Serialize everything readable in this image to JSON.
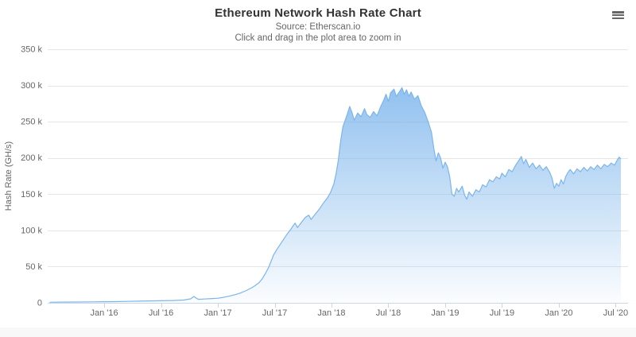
{
  "page": {
    "background_strip_color": "#f8f8f9"
  },
  "header": {
    "menu_icon": "hamburger-icon"
  },
  "chart_data": {
    "type": "area",
    "title": "Ethereum Network Hash Rate Chart",
    "subtitle": [
      "Source: Etherscan.io",
      "Click and drag in the plot area to zoom in"
    ],
    "xlabel": "",
    "ylabel": "Hash Rate (GH/s)",
    "y_unit": "k GH/s",
    "ylim": [
      0,
      350
    ],
    "xlim": [
      2015.503,
      2020.609
    ],
    "grid": true,
    "legend": "none",
    "colors": {
      "series_line": "#7cb5ec",
      "area_fill_top": "rgba(124,181,236,0.85)",
      "area_fill_bottom": "rgba(124,181,236,0.03)",
      "gridline": "#e6e6e6",
      "axis_line": "#ccd6eb",
      "tick_label": "#666666",
      "title": "#333333",
      "subtitle": "#666666"
    },
    "yticks": [
      {
        "v": 0,
        "label": "0"
      },
      {
        "v": 50,
        "label": "50 k"
      },
      {
        "v": 100,
        "label": "100 k"
      },
      {
        "v": 150,
        "label": "150 k"
      },
      {
        "v": 200,
        "label": "200 k"
      },
      {
        "v": 250,
        "label": "250 k"
      },
      {
        "v": 300,
        "label": "300 k"
      },
      {
        "v": 350,
        "label": "350 k"
      }
    ],
    "xticks": [
      {
        "t": 2016.0,
        "label": "Jan '16"
      },
      {
        "t": 2016.5,
        "label": "Jul '16"
      },
      {
        "t": 2017.0,
        "label": "Jan '17"
      },
      {
        "t": 2017.5,
        "label": "Jul '17"
      },
      {
        "t": 2018.0,
        "label": "Jan '18"
      },
      {
        "t": 2018.5,
        "label": "Jul '18"
      },
      {
        "t": 2019.0,
        "label": "Jan '19"
      },
      {
        "t": 2019.5,
        "label": "Jul '19"
      },
      {
        "t": 2020.0,
        "label": "Jan '20"
      },
      {
        "t": 2020.5,
        "label": "Jul '20"
      }
    ],
    "series": [
      {
        "name": "Hash Rate",
        "points": [
          [
            2015.52,
            0.8
          ],
          [
            2015.62,
            1.0
          ],
          [
            2015.75,
            1.1
          ],
          [
            2015.9,
            1.3
          ],
          [
            2016.0,
            1.5
          ],
          [
            2016.1,
            1.7
          ],
          [
            2016.2,
            2.0
          ],
          [
            2016.3,
            2.3
          ],
          [
            2016.4,
            2.6
          ],
          [
            2016.5,
            2.8
          ],
          [
            2016.6,
            3.2
          ],
          [
            2016.7,
            3.8
          ],
          [
            2016.76,
            5.5
          ],
          [
            2016.79,
            8.8
          ],
          [
            2016.81,
            6.2
          ],
          [
            2016.83,
            4.8
          ],
          [
            2016.88,
            5.3
          ],
          [
            2016.95,
            5.9
          ],
          [
            2017.0,
            6.4
          ],
          [
            2017.05,
            7.6
          ],
          [
            2017.1,
            9.2
          ],
          [
            2017.15,
            11.2
          ],
          [
            2017.2,
            13.6
          ],
          [
            2017.25,
            17
          ],
          [
            2017.3,
            21
          ],
          [
            2017.33,
            24
          ],
          [
            2017.36,
            27.5
          ],
          [
            2017.39,
            33
          ],
          [
            2017.42,
            41
          ],
          [
            2017.45,
            50
          ],
          [
            2017.47,
            58
          ],
          [
            2017.49,
            66
          ],
          [
            2017.52,
            74
          ],
          [
            2017.55,
            81
          ],
          [
            2017.58,
            88
          ],
          [
            2017.61,
            95
          ],
          [
            2017.64,
            101
          ],
          [
            2017.66,
            106
          ],
          [
            2017.68,
            110
          ],
          [
            2017.7,
            104
          ],
          [
            2017.72,
            108
          ],
          [
            2017.74,
            112
          ],
          [
            2017.77,
            118
          ],
          [
            2017.8,
            121
          ],
          [
            2017.82,
            115
          ],
          [
            2017.84,
            119
          ],
          [
            2017.87,
            125
          ],
          [
            2017.9,
            131
          ],
          [
            2017.93,
            138
          ],
          [
            2017.96,
            144
          ],
          [
            2017.99,
            152
          ],
          [
            2018.02,
            164
          ],
          [
            2018.04,
            178
          ],
          [
            2018.06,
            197
          ],
          [
            2018.08,
            223
          ],
          [
            2018.1,
            243
          ],
          [
            2018.12,
            252
          ],
          [
            2018.14,
            261
          ],
          [
            2018.16,
            271
          ],
          [
            2018.18,
            263
          ],
          [
            2018.2,
            252
          ],
          [
            2018.23,
            262
          ],
          [
            2018.26,
            257
          ],
          [
            2018.29,
            268
          ],
          [
            2018.31,
            260
          ],
          [
            2018.34,
            256
          ],
          [
            2018.37,
            264
          ],
          [
            2018.4,
            258
          ],
          [
            2018.43,
            270
          ],
          [
            2018.46,
            280
          ],
          [
            2018.48,
            288
          ],
          [
            2018.5,
            278
          ],
          [
            2018.52,
            290
          ],
          [
            2018.55,
            295
          ],
          [
            2018.57,
            285
          ],
          [
            2018.6,
            292
          ],
          [
            2018.62,
            297
          ],
          [
            2018.64,
            288
          ],
          [
            2018.66,
            294
          ],
          [
            2018.68,
            285
          ],
          [
            2018.7,
            291
          ],
          [
            2018.73,
            281
          ],
          [
            2018.76,
            286
          ],
          [
            2018.79,
            272
          ],
          [
            2018.82,
            263
          ],
          [
            2018.85,
            250
          ],
          [
            2018.88,
            235
          ],
          [
            2018.9,
            213
          ],
          [
            2018.92,
            196
          ],
          [
            2018.94,
            207
          ],
          [
            2018.96,
            200
          ],
          [
            2018.98,
            186
          ],
          [
            2019.0,
            194
          ],
          [
            2019.02,
            188
          ],
          [
            2019.04,
            174
          ],
          [
            2019.06,
            150
          ],
          [
            2019.08,
            147
          ],
          [
            2019.1,
            158
          ],
          [
            2019.12,
            153
          ],
          [
            2019.15,
            161
          ],
          [
            2019.17,
            149
          ],
          [
            2019.19,
            143
          ],
          [
            2019.21,
            153
          ],
          [
            2019.24,
            147
          ],
          [
            2019.27,
            156
          ],
          [
            2019.3,
            153
          ],
          [
            2019.33,
            163
          ],
          [
            2019.36,
            160
          ],
          [
            2019.39,
            170
          ],
          [
            2019.42,
            167
          ],
          [
            2019.45,
            174
          ],
          [
            2019.48,
            171
          ],
          [
            2019.5,
            179
          ],
          [
            2019.53,
            174
          ],
          [
            2019.56,
            184
          ],
          [
            2019.59,
            181
          ],
          [
            2019.62,
            190
          ],
          [
            2019.65,
            197
          ],
          [
            2019.67,
            202
          ],
          [
            2019.69,
            192
          ],
          [
            2019.71,
            198
          ],
          [
            2019.74,
            187
          ],
          [
            2019.77,
            193
          ],
          [
            2019.8,
            185
          ],
          [
            2019.83,
            190
          ],
          [
            2019.86,
            183
          ],
          [
            2019.89,
            188
          ],
          [
            2019.92,
            180
          ],
          [
            2019.94,
            172
          ],
          [
            2019.96,
            158
          ],
          [
            2019.98,
            165
          ],
          [
            2020.0,
            161
          ],
          [
            2020.02,
            170
          ],
          [
            2020.04,
            164
          ],
          [
            2020.06,
            174
          ],
          [
            2020.08,
            180
          ],
          [
            2020.1,
            184
          ],
          [
            2020.13,
            178
          ],
          [
            2020.16,
            185
          ],
          [
            2020.19,
            181
          ],
          [
            2020.22,
            187
          ],
          [
            2020.25,
            182
          ],
          [
            2020.28,
            188
          ],
          [
            2020.31,
            184
          ],
          [
            2020.34,
            190
          ],
          [
            2020.37,
            185
          ],
          [
            2020.4,
            191
          ],
          [
            2020.43,
            188
          ],
          [
            2020.46,
            193
          ],
          [
            2020.49,
            190
          ],
          [
            2020.51,
            196
          ],
          [
            2020.53,
            201
          ],
          [
            2020.546,
            199
          ]
        ]
      }
    ]
  }
}
